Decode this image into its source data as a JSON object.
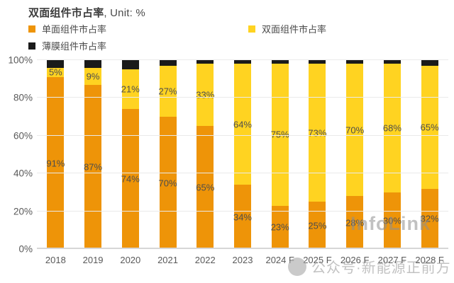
{
  "title": {
    "main": "双面组件市占率",
    "suffix": ", Unit: %"
  },
  "legend": [
    {
      "label": "单面组件市占率",
      "color": "#EE9408"
    },
    {
      "label": "双面组件市占率",
      "color": "#FFD321"
    },
    {
      "label": "薄膜组件市占率",
      "color": "#1A1A1A"
    }
  ],
  "watermarks": {
    "infolink": "InfoLink",
    "account": "公众号·新能源正前方"
  },
  "chart_data": {
    "type": "bar",
    "stacked": true,
    "title": "双面组件市占率, Unit: %",
    "categories": [
      "2018",
      "2019",
      "2020",
      "2021",
      "2022",
      "2023",
      "2024 F",
      "2025 F",
      "2026 F",
      "2027 F",
      "2028 F"
    ],
    "series": [
      {
        "name": "单面组件市占率",
        "color": "#EE9408",
        "show_labels": true,
        "values": [
          91,
          87,
          74,
          70,
          65,
          34,
          23,
          25,
          28,
          30,
          32
        ]
      },
      {
        "name": "双面组件市占率",
        "color": "#FFD321",
        "show_labels": true,
        "values": [
          5,
          9,
          21,
          27,
          33,
          64,
          75,
          73,
          70,
          68,
          65
        ]
      },
      {
        "name": "薄膜组件市占率",
        "color": "#1A1A1A",
        "show_labels": false,
        "values": [
          4,
          4,
          5,
          3,
          2,
          2,
          2,
          2,
          2,
          2,
          3
        ]
      }
    ],
    "y_ticks": [
      "0%",
      "20%",
      "40%",
      "60%",
      "80%",
      "100%"
    ],
    "ylim": [
      0,
      100
    ],
    "grid": true,
    "legend_position": "top"
  }
}
